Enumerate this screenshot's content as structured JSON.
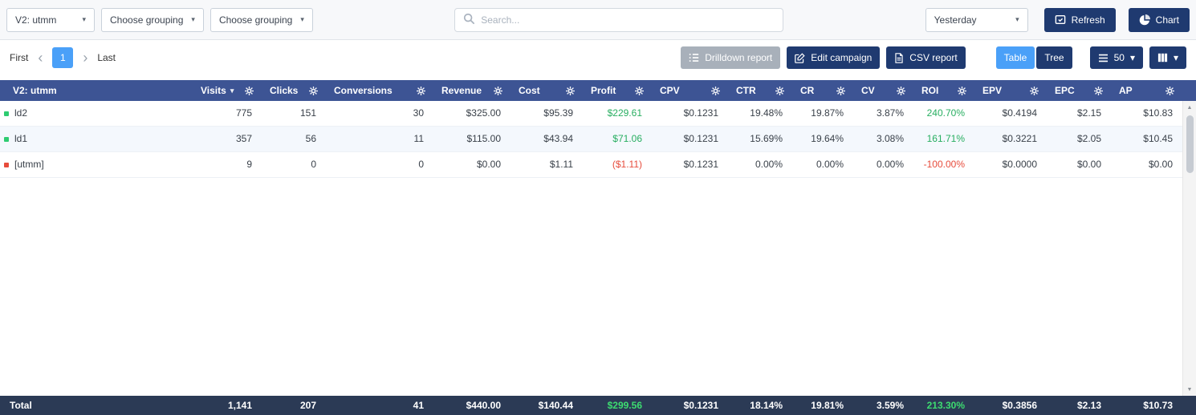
{
  "toolbar": {
    "campaign_filter": "V2: utmm",
    "grouping_1": "Choose grouping",
    "grouping_2": "Choose grouping",
    "search_placeholder": "Search...",
    "date_range": "Yesterday",
    "refresh": "Refresh",
    "chart": "Chart"
  },
  "pagination": {
    "first": "First",
    "current_page": "1",
    "last": "Last"
  },
  "actions": {
    "drilldown": "Drilldown report",
    "edit_campaign": "Edit campaign",
    "csv": "CSV report",
    "view_table": "Table",
    "view_tree": "Tree",
    "page_size": "50"
  },
  "icons": {
    "caret_down": "▾",
    "sort_desc": "▾",
    "chevron_left": "‹",
    "chevron_right": "›",
    "scroll_up": "▲",
    "scroll_down": "▼"
  },
  "colors": {
    "navy_button": "#1f3a70",
    "table_header_bg": "#3d5494",
    "table_footer_bg": "#2b3a55",
    "active_blue": "#4aa0f8",
    "positive": "#27ae60",
    "negative": "#e74c3c",
    "status_green": "#2ecc71",
    "status_red": "#e74c3c"
  },
  "table": {
    "columns": [
      {
        "key": "name",
        "label": "V2: utmm",
        "gear": false
      },
      {
        "key": "visits",
        "label": "Visits",
        "sort": "desc",
        "gear": true
      },
      {
        "key": "clicks",
        "label": "Clicks",
        "gear": true
      },
      {
        "key": "conversions",
        "label": "Conversions",
        "gear": true
      },
      {
        "key": "revenue",
        "label": "Revenue",
        "gear": true
      },
      {
        "key": "cost",
        "label": "Cost",
        "gear": true
      },
      {
        "key": "profit",
        "label": "Profit",
        "gear": true
      },
      {
        "key": "cpv",
        "label": "CPV",
        "gear": true
      },
      {
        "key": "ctr",
        "label": "CTR",
        "gear": true
      },
      {
        "key": "cr",
        "label": "CR",
        "gear": true
      },
      {
        "key": "cv",
        "label": "CV",
        "gear": true
      },
      {
        "key": "roi",
        "label": "ROI",
        "gear": true
      },
      {
        "key": "epv",
        "label": "EPV",
        "gear": true
      },
      {
        "key": "epc",
        "label": "EPC",
        "gear": true
      },
      {
        "key": "ap",
        "label": "AP",
        "gear": true
      }
    ],
    "rows": [
      {
        "status": "green",
        "name": "ld2",
        "trend": "positive",
        "cells": [
          "775",
          "151",
          "30",
          "$325.00",
          "$95.39",
          "$229.61",
          "$0.1231",
          "19.48%",
          "19.87%",
          "3.87%",
          "240.70%",
          "$0.4194",
          "$2.15",
          "$10.83"
        ]
      },
      {
        "status": "green",
        "name": "ld1",
        "trend": "positive",
        "cells": [
          "357",
          "56",
          "11",
          "$115.00",
          "$43.94",
          "$71.06",
          "$0.1231",
          "15.69%",
          "19.64%",
          "3.08%",
          "161.71%",
          "$0.3221",
          "$2.05",
          "$10.45"
        ]
      },
      {
        "status": "red",
        "name": "[utmm]",
        "trend": "negative",
        "cells": [
          "9",
          "0",
          "0",
          "$0.00",
          "$1.11",
          "($1.11)",
          "$0.1231",
          "0.00%",
          "0.00%",
          "0.00%",
          "-100.00%",
          "$0.0000",
          "$0.00",
          "$0.00"
        ]
      }
    ],
    "total": {
      "label": "Total",
      "trend": "positive",
      "cells": [
        "1,141",
        "207",
        "41",
        "$440.00",
        "$140.44",
        "$299.56",
        "$0.1231",
        "18.14%",
        "19.81%",
        "3.59%",
        "213.30%",
        "$0.3856",
        "$2.13",
        "$10.73"
      ]
    }
  }
}
